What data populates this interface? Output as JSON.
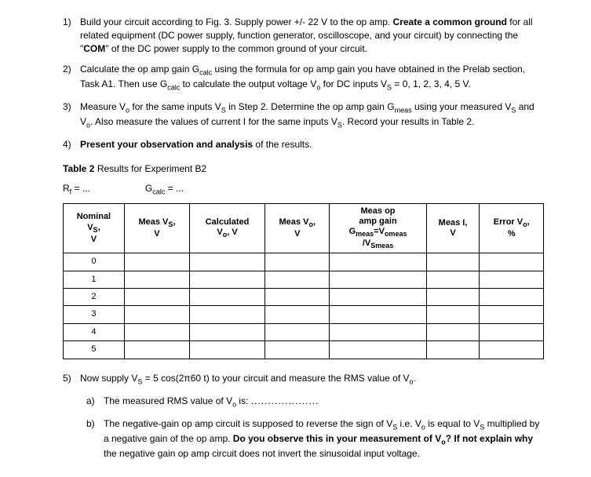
{
  "items": [
    {
      "num": "1)",
      "html": "Build your circuit according to Fig. 3. Supply power +/- 22 V to the op amp. <b>Create a common ground</b> for all related equipment (DC power supply, function generator, oscilloscope, and your circuit) by connecting the \"<b>COM</b>\" of the DC power supply to the common ground of your circuit."
    },
    {
      "num": "2)",
      "html": "Calculate the op amp gain G<sub>calc</sub> using the formula for op amp gain you have obtained in the Prelab section, Task A1. Then use G<sub>calc</sub> to calculate the output voltage V<sub>o</sub> for DC inputs V<sub>S</sub> = 0, 1, 2, 3, 4, 5 V."
    },
    {
      "num": "3)",
      "html": "Measure V<sub>o</sub> for the same inputs V<sub>S</sub> in Step 2. Determine the op amp gain G<sub>meas</sub> using your measured V<sub>S</sub> and V<sub>o</sub>. Also measure the values of current I for the same inputs V<sub>S</sub>. Record your results in Table 2."
    },
    {
      "num": "4)",
      "html": "<b>Present your observation and analysis</b> of the results."
    }
  ],
  "table": {
    "title": "Table 2",
    "title_desc": "Results for Experiment B2",
    "param1": "R<sub>f</sub> = ...",
    "param2": "G<sub>calc</sub> = ...",
    "headers": [
      "Nominal<br>V<sub>S</sub>,<br>V",
      "Meas V<sub>S</sub>,<br>V",
      "Calculated<br>V<sub>o</sub>, V",
      "Meas V<sub>o</sub>,<br>V",
      "Meas op<br>amp gain<br>G<sub>meas</sub>=V<sub>omeas</sub><br>/V<sub>Smeas</sub>",
      "Meas I,<br>V",
      "Error V<sub>o</sub>,<br>%"
    ],
    "rows": [
      "0",
      "1",
      "2",
      "3",
      "4",
      "5"
    ]
  },
  "item5": {
    "num": "5)",
    "html": "Now supply V<sub>S</sub> = 5 cos(2π60 t) to your circuit and measure the RMS value of V<sub>o</sub>.",
    "sub_a": {
      "letter": "a)",
      "html": "The measured RMS value of V<sub>o</sub> is: <span class=\"dots\">....................</span>"
    },
    "sub_b": {
      "letter": "b)",
      "html": "The negative-gain op amp circuit is supposed to reverse the sign of V<sub>S</sub> i.e. V<sub>o</sub> is equal to V<sub>S</sub> multiplied by a negative gain of the op amp. <b>Do you observe this in your measurement of V<sub>o</sub>? If not explain why</b> the negative gain op amp circuit does not invert the sinusoidal input voltage."
    }
  }
}
